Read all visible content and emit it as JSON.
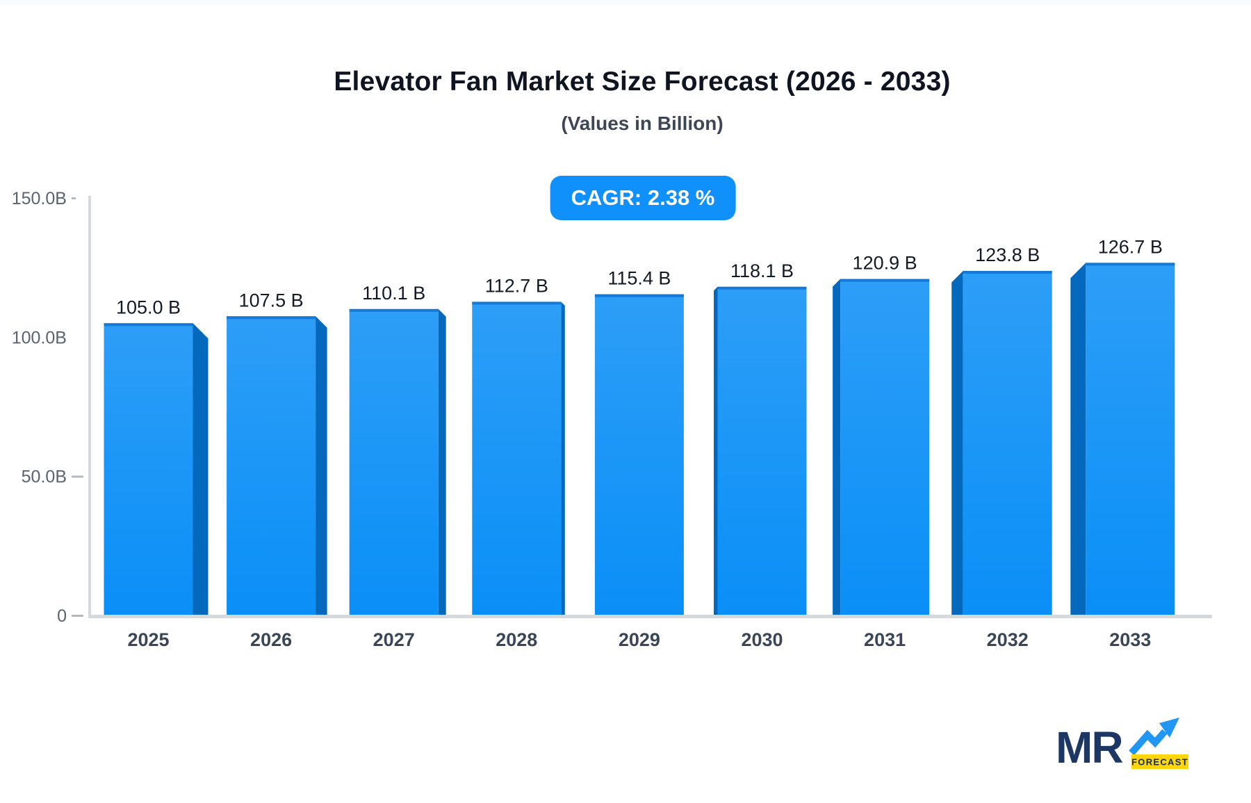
{
  "header": {
    "title": "Elevator Fan Market Size Forecast (2026 - 2033)",
    "subtitle": "(Values in Billion)",
    "cagr_badge": "CAGR: 2.38 %",
    "badge_bg": "#1090fa",
    "badge_text_color": "#ffffff"
  },
  "chart_data": {
    "type": "bar",
    "title": "Elevator Fan Market Size Forecast (2026 - 2033)",
    "subtitle": "(Values in Billion)",
    "cagr": "2.38 %",
    "categories": [
      "2025",
      "2026",
      "2027",
      "2028",
      "2029",
      "2030",
      "2031",
      "2032",
      "2033"
    ],
    "values": [
      105.0,
      107.5,
      110.1,
      112.7,
      115.4,
      118.1,
      120.9,
      123.8,
      126.7
    ],
    "value_labels": [
      "105.0 B",
      "107.5 B",
      "110.1 B",
      "112.7 B",
      "115.4 B",
      "118.1 B",
      "120.9 B",
      "123.8 B",
      "126.7 B"
    ],
    "xlabel": "",
    "ylabel": "",
    "ylim": [
      0,
      150
    ],
    "yticks": [
      0,
      50,
      100,
      150
    ],
    "ytick_labels": [
      "0",
      "50.0B",
      "100.0B",
      "150.0B"
    ],
    "grid": false,
    "legend": false,
    "bar_style": "3d-perspective-toward-center",
    "colors": {
      "bar_face_top": "#2d9ef7",
      "bar_face_bottom": "#0a8ff7",
      "bar_side": "#0468bd",
      "bar_top_edge": "#1679d3",
      "axis_line": "#d6d9dc",
      "tick_mark": "#b3bac2"
    }
  },
  "logo": {
    "brand": "MR",
    "sub_label": "FORECAST",
    "colors": {
      "text": "#1c3764",
      "arrow": "#2196f3",
      "badge_bg": "#ffd60a"
    }
  }
}
